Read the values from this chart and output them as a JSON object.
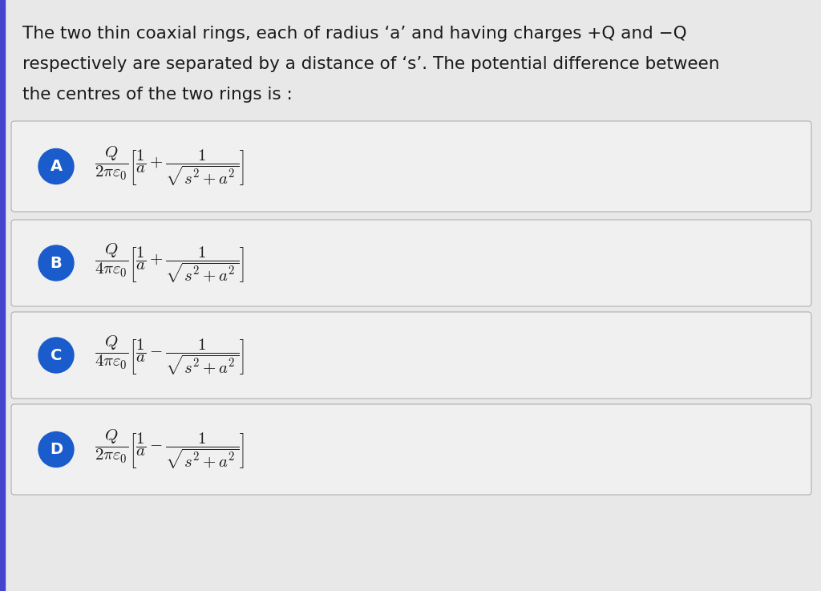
{
  "bg_color": "#c8c8c8",
  "card_bg": "#f0f0f0",
  "question_line1": "The two thin coaxial rings, each of radius ‘a’ and having charges +Q and −Q",
  "question_line2": "respectively are separated by a distance of ‘s’. The potential difference between",
  "question_line3": "the centres of the two rings is :",
  "options": [
    {
      "label": "A",
      "label_bg": "#1a5ccc",
      "formula": "$\\dfrac{Q}{2\\pi\\varepsilon_0}\\left[\\dfrac{1}{a}+\\dfrac{1}{\\sqrt{s^2+a^2}}\\right]$"
    },
    {
      "label": "B",
      "label_bg": "#1a5ccc",
      "formula": "$\\dfrac{Q}{4\\pi\\varepsilon_0}\\left[\\dfrac{1}{a}+\\dfrac{1}{\\sqrt{s^2+a^2}}\\right]$"
    },
    {
      "label": "C",
      "label_bg": "#1a5ccc",
      "formula": "$\\dfrac{Q}{4\\pi\\varepsilon_0}\\left[\\dfrac{1}{a}-\\dfrac{1}{\\sqrt{s^2+a^2}}\\right]$"
    },
    {
      "label": "D",
      "label_bg": "#1a5ccc",
      "formula": "$\\dfrac{Q}{2\\pi\\varepsilon_0}\\left[\\dfrac{1}{a}-\\dfrac{1}{\\sqrt{s^2+a^2}}\\right]$"
    }
  ],
  "question_fontsize": 15.5,
  "formula_fontsize": 15,
  "text_color": "#1a1a1a",
  "border_color": "#b0b0b0",
  "label_text_color": "#ffffff",
  "left_bar_color": "#4444cc"
}
